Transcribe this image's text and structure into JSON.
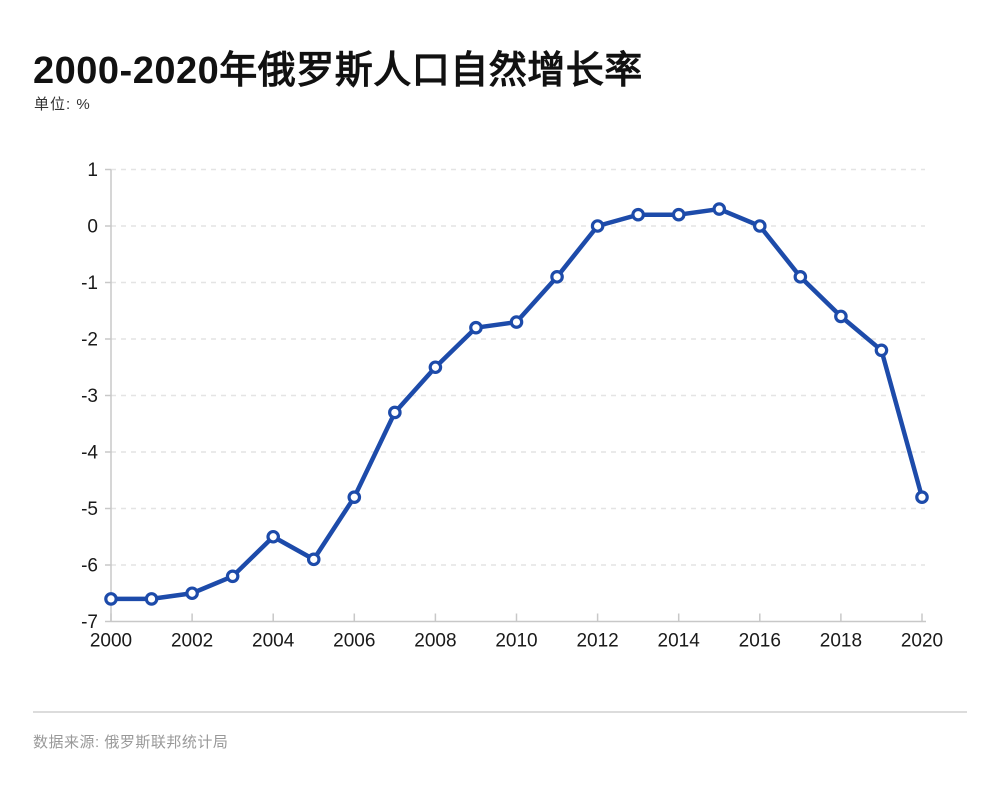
{
  "page": {
    "title": "2000-2020年俄罗斯人口自然增长率",
    "unit_label": "单位: %",
    "source": "数据来源: 俄罗斯联邦统计局"
  },
  "chart_data": {
    "type": "line",
    "title": "2000-2020年俄罗斯人口自然增长率",
    "unit": "%",
    "x": [
      2000,
      2001,
      2002,
      2003,
      2004,
      2005,
      2006,
      2007,
      2008,
      2009,
      2010,
      2011,
      2012,
      2013,
      2014,
      2015,
      2016,
      2017,
      2018,
      2019,
      2020
    ],
    "series": [
      {
        "name": "人口自然增长率",
        "values": [
          -6.6,
          -6.6,
          -6.5,
          -6.2,
          -5.5,
          -5.9,
          -4.8,
          -3.3,
          -2.5,
          -1.8,
          -1.7,
          -0.9,
          0.0,
          0.2,
          0.2,
          0.3,
          0.0,
          -0.9,
          -1.6,
          -2.2,
          -4.8
        ]
      }
    ],
    "ylim": [
      -7,
      1
    ],
    "yticks": [
      1,
      0,
      -1,
      -2,
      -3,
      -4,
      -5,
      -6,
      -7
    ],
    "xticks": [
      2000,
      2002,
      2004,
      2006,
      2008,
      2010,
      2012,
      2014,
      2016,
      2018,
      2020
    ],
    "grid": true,
    "legend": "none",
    "marker": "open-circle",
    "colors": {
      "line": "#1d4baa",
      "marker_fill": "#ffffff",
      "grid": "#e4e4e4",
      "axis": "#c8c8c8",
      "tick_label": "#1a1a1a"
    }
  }
}
